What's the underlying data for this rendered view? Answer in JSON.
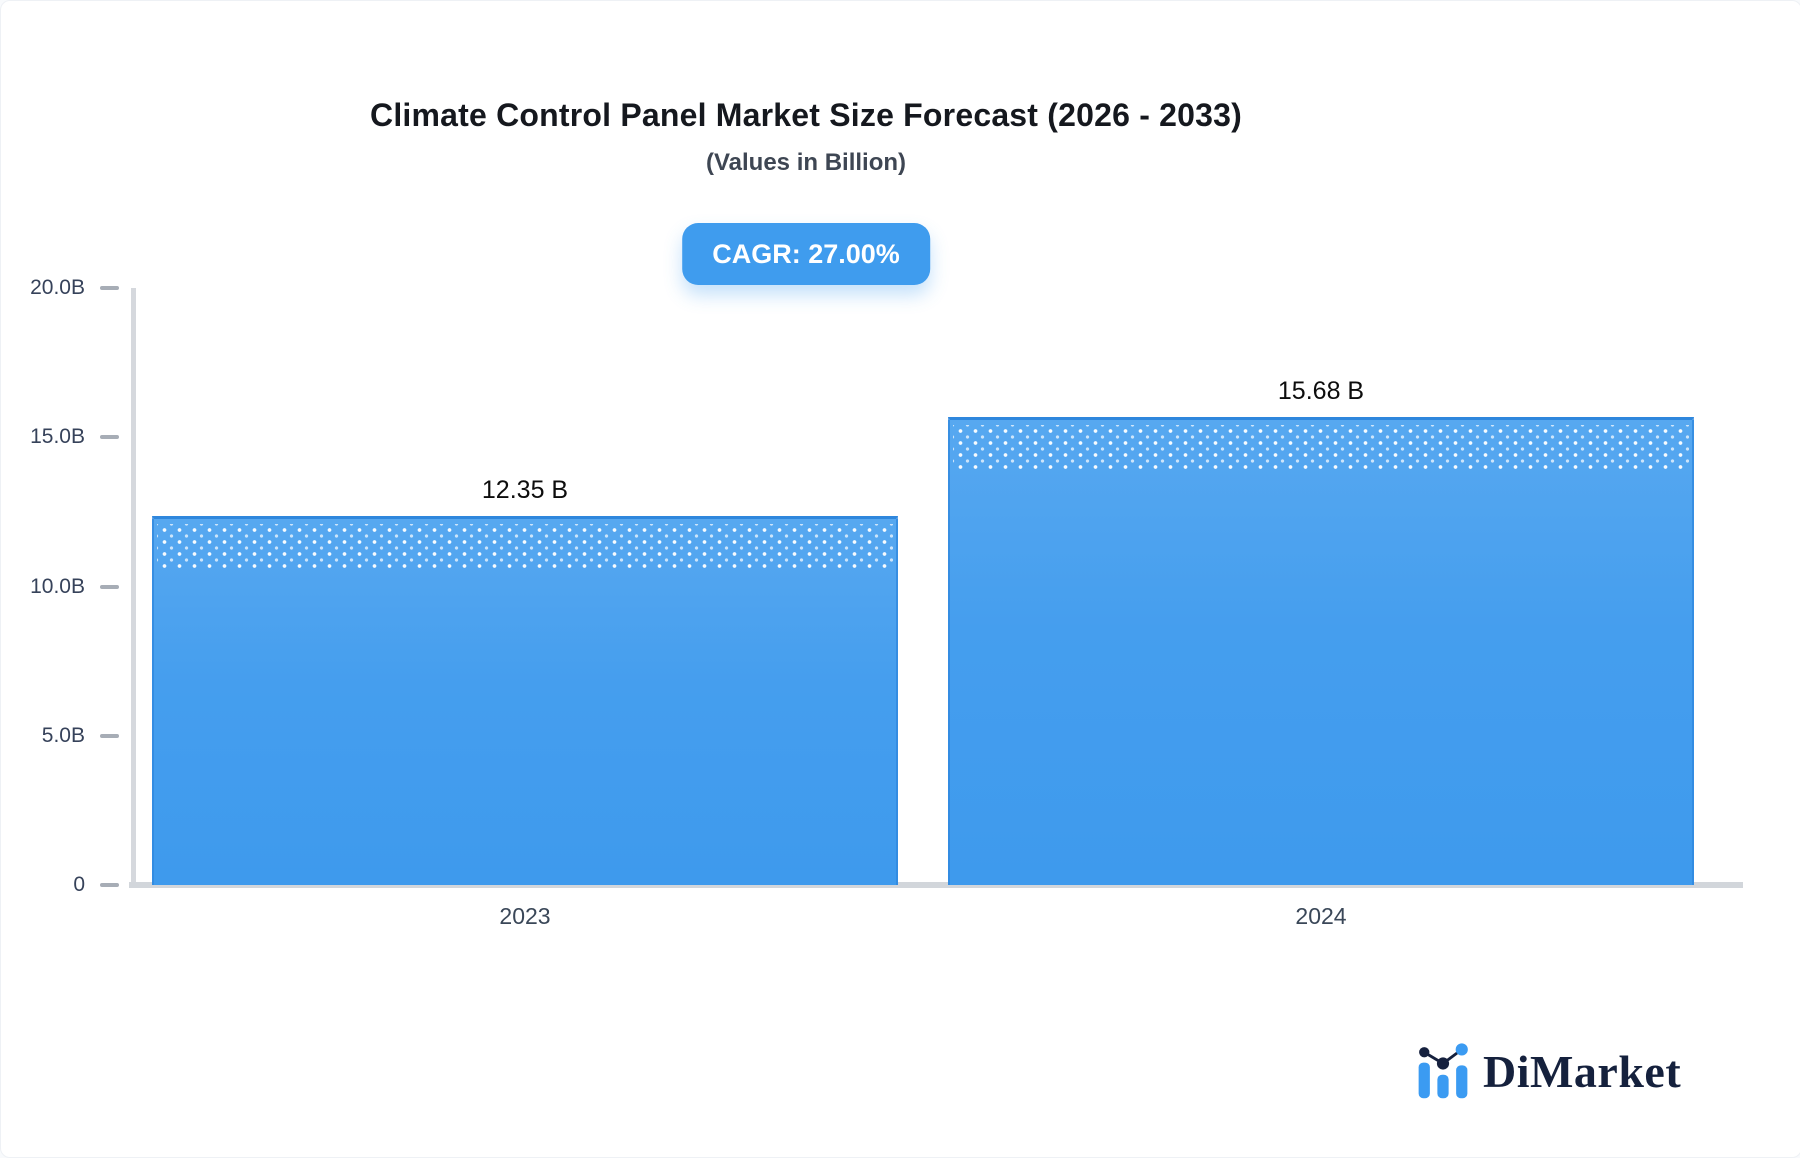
{
  "chart": {
    "title": "Climate Control Panel Market Size Forecast (2026 - 2033)",
    "subtitle": "(Values in Billion)",
    "cagr_label": "CAGR: 27.00%"
  },
  "chart_data": {
    "type": "bar",
    "title": "Climate Control Panel Market Size Forecast (2026 - 2033)",
    "subtitle": "(Values in Billion)",
    "cagr": "27.00%",
    "categories": [
      "2023",
      "2024"
    ],
    "values": [
      12.35,
      15.68
    ],
    "value_labels": [
      "12.35 B",
      "15.68 B"
    ],
    "xlabel": "",
    "ylabel": "",
    "ylim": [
      0,
      20
    ],
    "y_ticks": [
      {
        "value": 20,
        "label": "20.0B"
      },
      {
        "value": 15,
        "label": "15.0B"
      },
      {
        "value": 10,
        "label": "10.0B"
      },
      {
        "value": 5,
        "label": "5.0B"
      },
      {
        "value": 0,
        "label": "0"
      }
    ],
    "grid": false,
    "legend": false,
    "bar_color": "#3f9cee"
  },
  "brand": {
    "name": "DiMarket"
  },
  "colors": {
    "accent": "#3f9cee",
    "bar_gradient_top": "#57a8f0",
    "bar_gradient_bottom": "#3e9aed",
    "bar_border": "#2f87dd",
    "axis_line": "#d5d8dd",
    "tick_mark": "#a7adb6",
    "navy": "#16213e",
    "title_text": "#15181e",
    "subtitle_text": "#3e4653",
    "axis_label_text": "#36425a"
  }
}
